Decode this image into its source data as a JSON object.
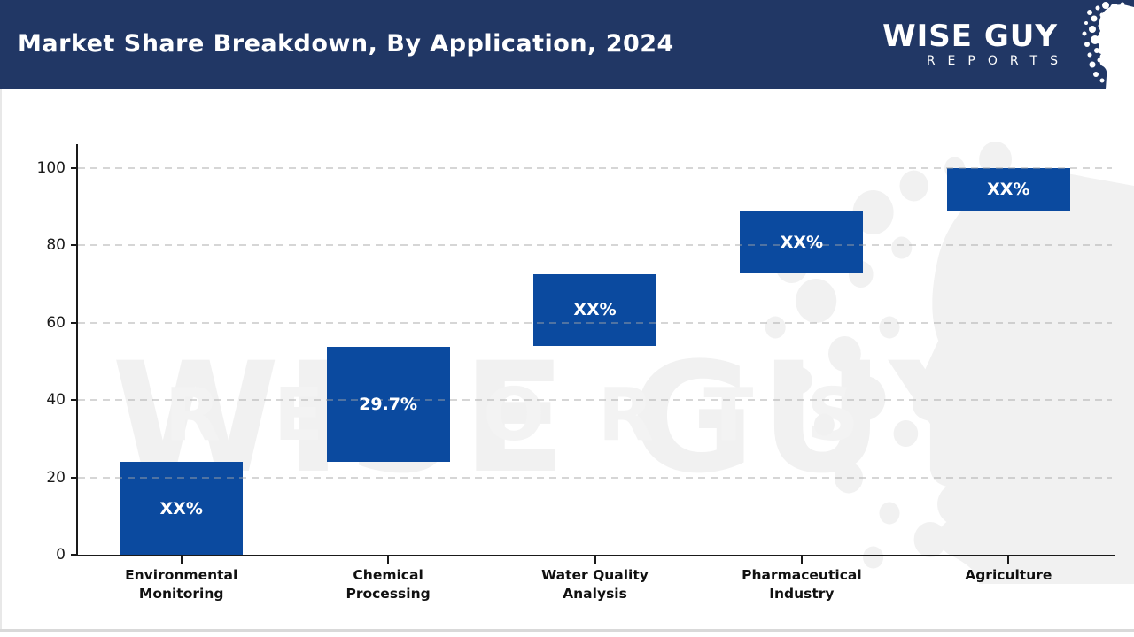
{
  "header": {
    "title": "Market Share Breakdown, By Application, 2024",
    "logo_line1": "WISE GUY",
    "logo_line2": "REPORTS"
  },
  "watermark": {
    "line1": "WISE GUY",
    "line2": "REPORTS"
  },
  "colors": {
    "header_bg": "#213765",
    "bar": "#0b4a9f",
    "bar_label": "#ffffff",
    "grid": "#d8d8d8",
    "axis": "#1a1a1a",
    "watermark": "#f1f1f1",
    "footer_strip": "#d9d9d9"
  },
  "chart_data": {
    "type": "bar",
    "subtype": "waterfall",
    "title": "Market Share Breakdown, By Application, 2024",
    "xlabel": "",
    "ylabel": "",
    "categories": [
      "Environmental Monitoring",
      "Chemical Processing",
      "Water Quality Analysis",
      "Pharmaceutical Industry",
      "Agriculture"
    ],
    "category_lines": [
      [
        "Environmental",
        "Monitoring"
      ],
      [
        "Chemical",
        "Processing"
      ],
      [
        "Water Quality",
        "Analysis"
      ],
      [
        "Pharmaceutical",
        "Industry"
      ],
      [
        "Agriculture"
      ]
    ],
    "segments": [
      {
        "category": "Environmental Monitoring",
        "label": "XX%",
        "start": 0,
        "end": 24
      },
      {
        "category": "Chemical Processing",
        "label": "29.7%",
        "start": 24,
        "end": 53.7
      },
      {
        "category": "Water Quality Analysis",
        "label": "XX%",
        "start": 54,
        "end": 72.5
      },
      {
        "category": "Pharmaceutical Industry",
        "label": "XX%",
        "start": 72.7,
        "end": 88.6
      },
      {
        "category": "Agriculture",
        "label": "XX%",
        "start": 88.9,
        "end": 100
      }
    ],
    "yticks": [
      0,
      20,
      40,
      60,
      80,
      100
    ],
    "ylim": [
      0,
      106
    ],
    "grid": "horizontal-dashed-over-bars",
    "legend": "none",
    "bar_color": "#0b4a9f",
    "bar_label_color": "#ffffff"
  }
}
